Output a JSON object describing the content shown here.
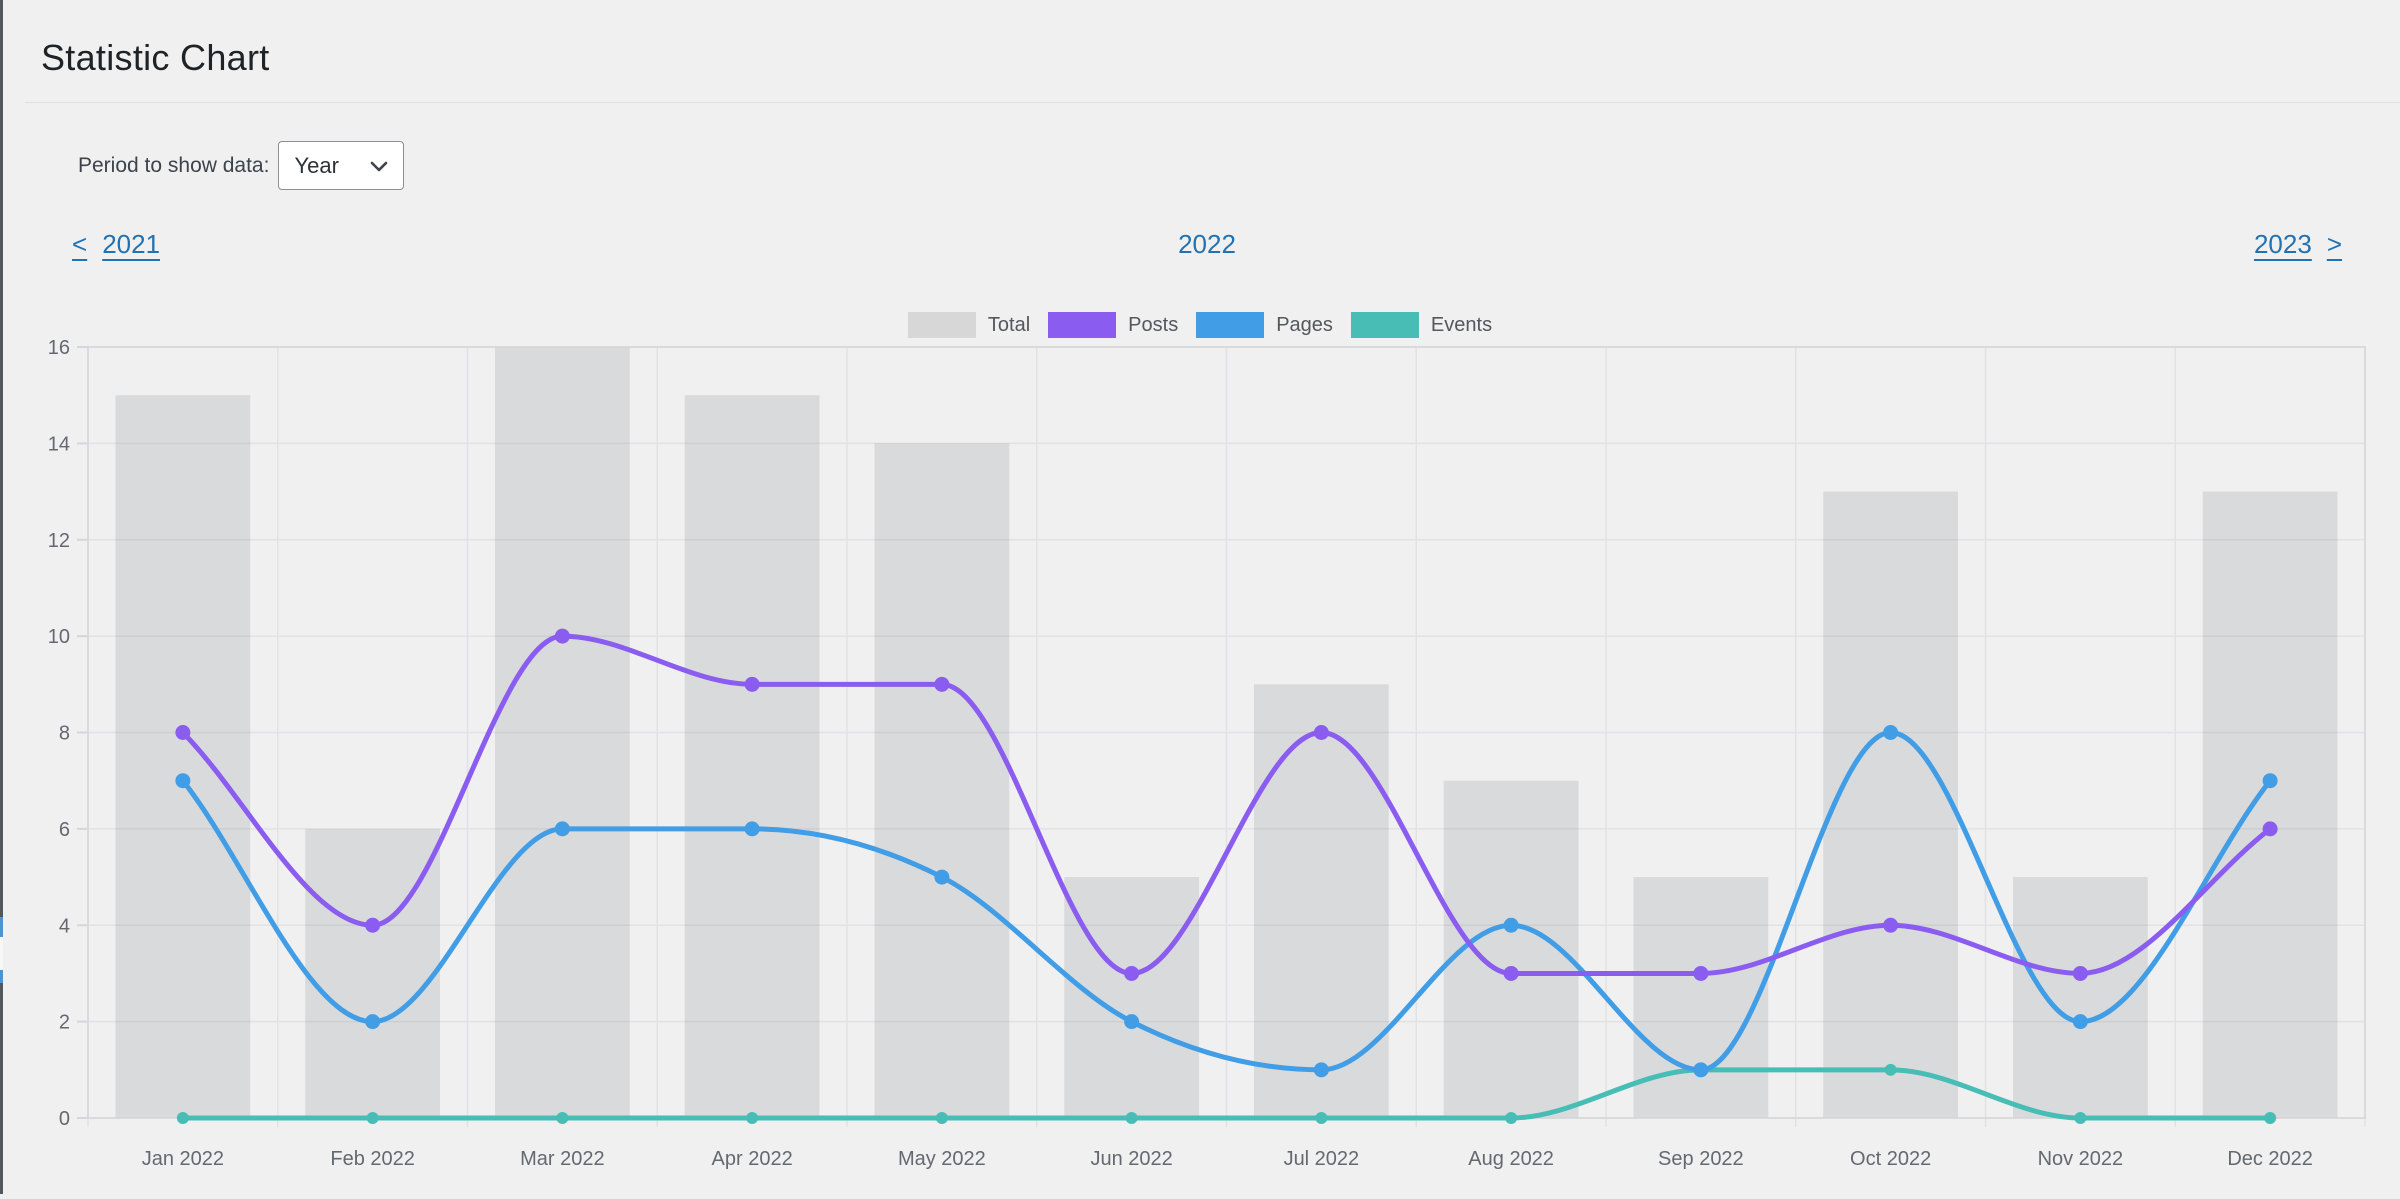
{
  "page": {
    "title": "Statistic Chart"
  },
  "controls": {
    "period_label": "Period to show data:",
    "period_value": "Year",
    "chevron_icon": "chevron-down"
  },
  "nav": {
    "prev_arrow": "<",
    "prev_year": "2021",
    "current_year": "2022",
    "next_year": "2023",
    "next_arrow": ">"
  },
  "colors": {
    "background": "#f0f0f1",
    "link": "#2271b1",
    "title_text": "#1d2327",
    "axis_text": "#646970",
    "grid_line": "#e2e2e4",
    "plot_border": "#d5d6d8",
    "bar_fill": "rgba(40,45,50,0.11)",
    "total": "#d7d7d8",
    "posts": "#8a5cf0",
    "pages": "#419de6",
    "events": "#48bdb6"
  },
  "chart_data": {
    "type": "bar+line combo",
    "title": "",
    "xlabel": "",
    "ylabel": "",
    "ylim": [
      0,
      16
    ],
    "ytick_step": 2,
    "grid": true,
    "legend_position": "top-center",
    "categories": [
      "Jan 2022",
      "Feb 2022",
      "Mar 2022",
      "Apr 2022",
      "May 2022",
      "Jun 2022",
      "Jul 2022",
      "Aug 2022",
      "Sep 2022",
      "Oct 2022",
      "Nov 2022",
      "Dec 2022"
    ],
    "series": [
      {
        "name": "Total",
        "type": "bar",
        "color": "#d7d7d8",
        "values": [
          15,
          6,
          16,
          15,
          14,
          5,
          9,
          7,
          5,
          13,
          5,
          13
        ]
      },
      {
        "name": "Posts",
        "type": "line",
        "color": "#8a5cf0",
        "values": [
          8,
          4,
          10,
          9,
          9,
          3,
          8,
          3,
          3,
          4,
          3,
          6
        ]
      },
      {
        "name": "Pages",
        "type": "line",
        "color": "#419de6",
        "values": [
          7,
          2,
          6,
          6,
          5,
          2,
          1,
          4,
          1,
          8,
          2,
          7
        ]
      },
      {
        "name": "Events",
        "type": "line",
        "color": "#48bdb6",
        "values": [
          0,
          0,
          0,
          0,
          0,
          0,
          0,
          0,
          1,
          1,
          0,
          0
        ]
      }
    ]
  }
}
